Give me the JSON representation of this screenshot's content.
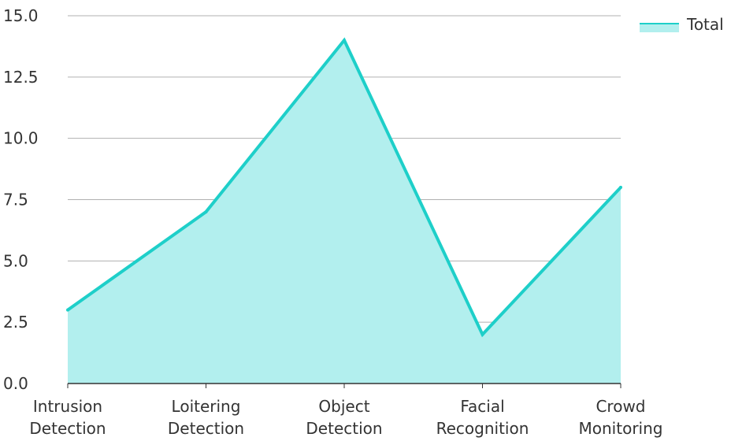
{
  "chart_data": {
    "type": "area",
    "categories": [
      "Intrusion Detection",
      "Loitering Detection",
      "Object Detection",
      "Facial Recognition",
      "Crowd Monitoring"
    ],
    "category_lines": [
      [
        "Intrusion",
        "Detection"
      ],
      [
        "Loitering",
        "Detection"
      ],
      [
        "Object",
        "Detection"
      ],
      [
        "Facial",
        "Recognition"
      ],
      [
        "Crowd",
        "Monitoring"
      ]
    ],
    "series": [
      {
        "name": "Total",
        "values": [
          3,
          7,
          14,
          2,
          8
        ]
      }
    ],
    "ylim": [
      0,
      15
    ],
    "yticks": [
      "0.0",
      "2.5",
      "5.0",
      "7.5",
      "10.0",
      "12.5",
      "15.0"
    ],
    "ytick_values": [
      0,
      2.5,
      5,
      7.5,
      10,
      12.5,
      15
    ],
    "grid": true,
    "legend_position": "top-right",
    "colors": {
      "line": "#1ecfc9",
      "fill": "#b2efee",
      "grid": "#b0b0b0",
      "axis": "#333333",
      "text": "#333333"
    }
  }
}
